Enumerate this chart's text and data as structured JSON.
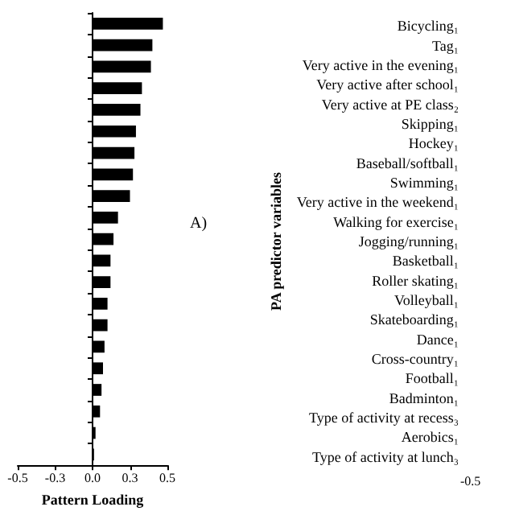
{
  "chart_data": [
    {
      "type": "bar",
      "orientation": "horizontal",
      "xlabel": "Pattern Loading",
      "categories": [
        null,
        null,
        null,
        null,
        null,
        null,
        null,
        null,
        null,
        null,
        null,
        null,
        null,
        null,
        null,
        null,
        null,
        null,
        null,
        null,
        null
      ],
      "values": [
        0.47,
        0.4,
        0.39,
        0.33,
        0.32,
        0.29,
        0.28,
        0.27,
        0.25,
        0.17,
        0.14,
        0.12,
        0.12,
        0.1,
        0.1,
        0.08,
        0.07,
        0.06,
        0.05,
        0.02,
        0.01
      ],
      "color": "#000000",
      "xlim": [
        -0.5,
        0.5
      ],
      "xticks": [
        -0.5,
        {
          "value": -0.25,
          "label": "-0.3"
        },
        {
          "value": 0,
          "label": "0.0"
        },
        {
          "value": 0.25,
          "label": "0.3"
        },
        0.5
      ]
    },
    {
      "type": "other",
      "ylabel": "PA predictor variables",
      "annotations": [
        "A)",
        "-0.5"
      ],
      "categories": [
        "Bicycling₁",
        "Tag₁",
        "Very active in the evening₁",
        "Very active after school₁",
        "Very active at PE class₂",
        "Skipping₁",
        "Hockey₁",
        "Baseball/softball₁",
        "Swimming₁",
        "Very active in the weekend₁",
        "Walking for exercise₁",
        "Jogging/running₁",
        "Basketball₁",
        "Roller skating₁",
        "Volleyball₁",
        "Skateboarding₁",
        "Dance₁",
        "Cross-country₁",
        "Football₁",
        "Badminton₁",
        "Type of activity at recess₃",
        "Aerobics₁",
        "Type of activity at lunch₃"
      ]
    }
  ]
}
